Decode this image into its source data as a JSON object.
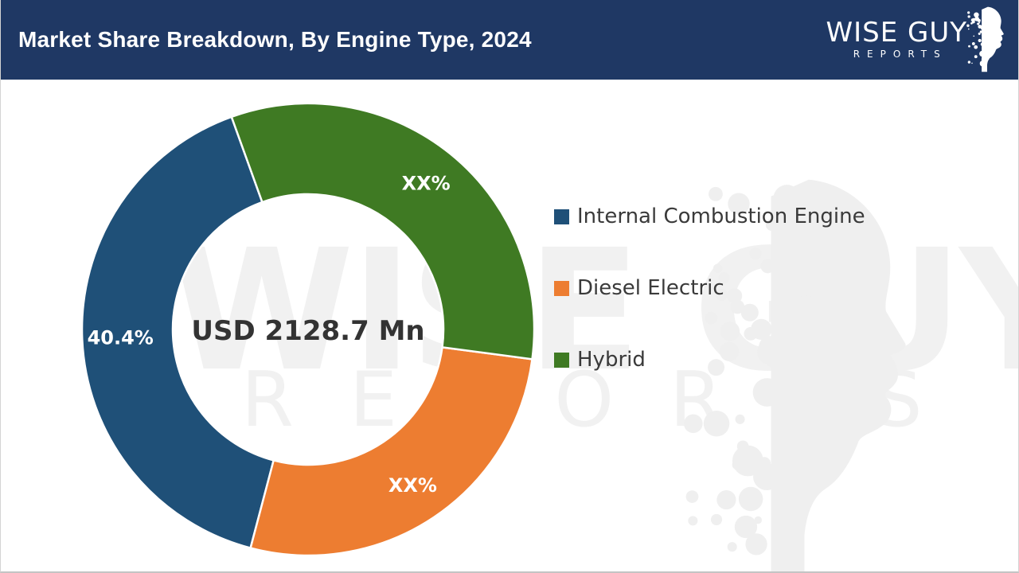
{
  "header": {
    "title": "Market Share Breakdown, By Engine Type, 2024",
    "logo": {
      "wordmark": "WISE GUY",
      "subtext": "REPORTS"
    }
  },
  "watermark": {
    "line1": "WISE GUY",
    "line2": "REPORTS"
  },
  "chart_data": {
    "type": "pie",
    "subtype": "donut",
    "title": "Market Share Breakdown, By Engine Type, 2024",
    "center_label": "USD 2128.7 Mn",
    "start_angle_deg": 109.8,
    "direction": "counterclockwise",
    "inner_radius_ratio": 0.6,
    "legend_position": "right",
    "segments": [
      {
        "name": "Internal Combustion Engine",
        "value_pct": 40.4,
        "display_label": "40.4%",
        "color": "#1f5078"
      },
      {
        "name": "Diesel Electric",
        "value_pct": 27.0,
        "display_label": "XX%",
        "color": "#ed7d31"
      },
      {
        "name": "Hybrid",
        "value_pct": 32.6,
        "display_label": "XX%",
        "color": "#3f7a23"
      }
    ],
    "colors": {
      "header_bg": "#1f3864",
      "segment_label_text": "#ffffff",
      "center_text": "#333333",
      "legend_text": "#3a3a3a",
      "watermark": "#f1f1f1"
    }
  }
}
